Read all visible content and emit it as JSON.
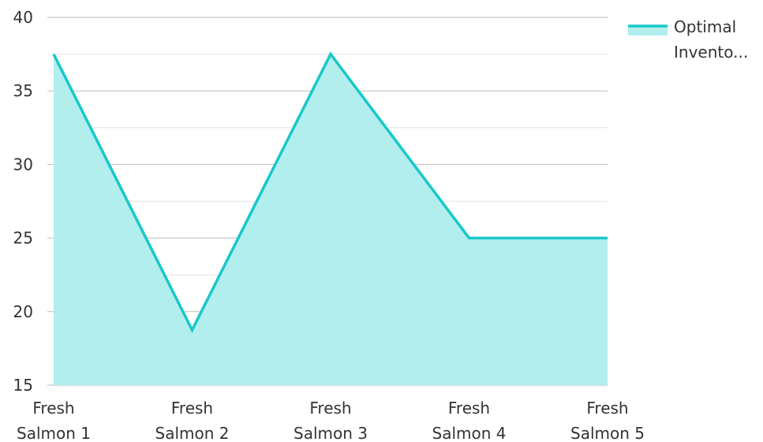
{
  "chart_data": {
    "type": "area",
    "categories": [
      "Fresh Salmon 1",
      "Fresh Salmon 2",
      "Fresh Salmon 3",
      "Fresh Salmon 4",
      "Fresh Salmon 5"
    ],
    "category_lines": [
      [
        "Fresh",
        "Salmon 1"
      ],
      [
        "Fresh",
        "Salmon 2"
      ],
      [
        "Fresh",
        "Salmon 3"
      ],
      [
        "Fresh",
        "Salmon 4"
      ],
      [
        "Fresh",
        "Salmon 5"
      ]
    ],
    "series": [
      {
        "name": "Optimal Invento...",
        "name_lines": [
          "Optimal",
          "Invento..."
        ],
        "values": [
          37.5,
          18.75,
          37.5,
          25,
          25
        ]
      }
    ],
    "ylim": [
      15,
      40
    ],
    "yticks": [
      15,
      20,
      25,
      30,
      35,
      40
    ],
    "minor_grid": [
      17.5,
      22.5,
      27.5,
      32.5,
      37.5
    ],
    "grid": true,
    "legend_position": "top-right",
    "title": "",
    "xlabel": "",
    "ylabel": ""
  },
  "colors": {
    "line": "#18C8C8",
    "fill": "#B2EEEE",
    "grid_major": "#BDBDBD",
    "grid_minor": "#E3E3E3",
    "text": "#333333"
  }
}
